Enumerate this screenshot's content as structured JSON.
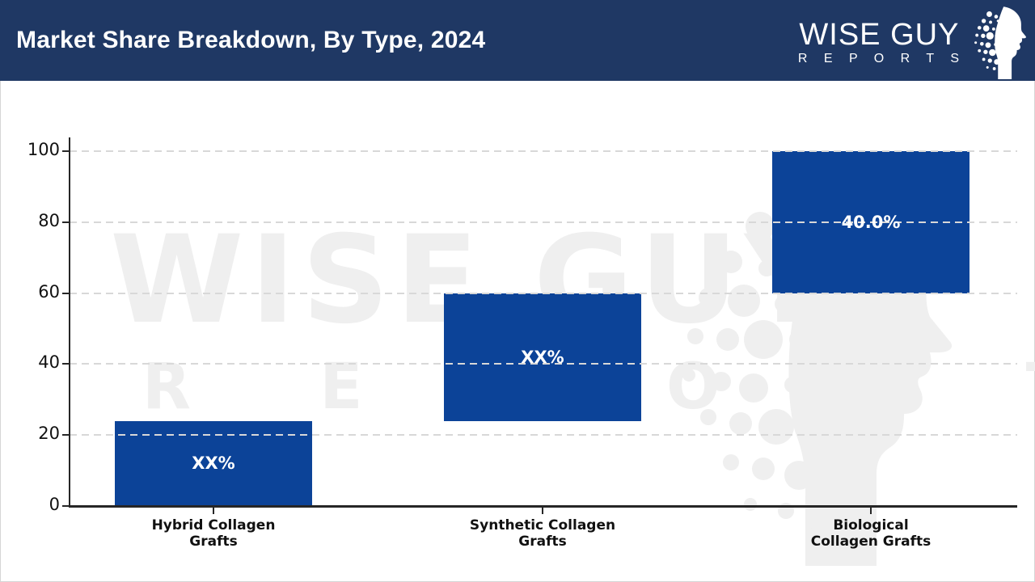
{
  "header": {
    "title": "Market Share Breakdown, By Type, 2024",
    "logo_line1": "WISE GUY",
    "logo_line2": "R E P O R T S"
  },
  "watermark": {
    "line1": "WISE GUY",
    "line2": "R E P O R T S"
  },
  "chart_data": {
    "type": "bar",
    "subtype": "waterfall",
    "title": "Market Share Breakdown, By Type, 2024",
    "categories": [
      "Hybrid Collagen\nGrafts",
      "Synthetic Collagen\nGrafts",
      "Biological\nCollagen Grafts"
    ],
    "segments": [
      {
        "category": "Hybrid Collagen Grafts",
        "start": 0,
        "end": 24,
        "label": "XX%"
      },
      {
        "category": "Synthetic Collagen Grafts",
        "start": 24,
        "end": 60,
        "label": "XX%"
      },
      {
        "category": "Biological Collagen Grafts",
        "start": 60,
        "end": 100,
        "label": "40.0%"
      }
    ],
    "yticks": [
      0,
      20,
      40,
      60,
      80,
      100
    ],
    "ylim": [
      0,
      100
    ],
    "grid": {
      "axis": "y",
      "style": "dashed",
      "above_bars": true
    },
    "legend": "none",
    "colors": {
      "bar": "#0c4398",
      "header_bg": "#1f3864",
      "grid": "#d8d8d8",
      "axis": "#262626",
      "watermark": "#efefef",
      "bar_label_text": "#ffffff",
      "tick_text": "#111111"
    }
  }
}
